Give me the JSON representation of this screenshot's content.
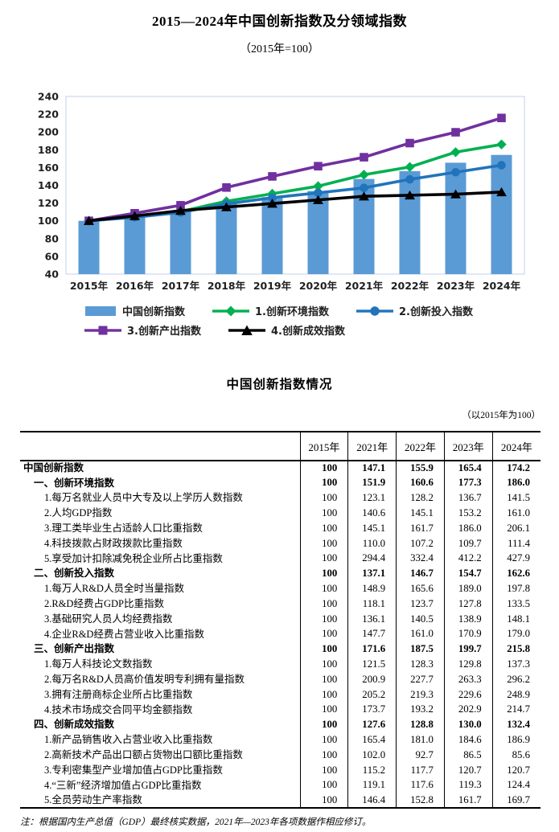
{
  "page": {
    "title": "2015—2024年中国创新指数及分领域指数",
    "subtitle": "（2015年=100）",
    "footer_note": "注：根据国内生产总值（GDP）最终核实数据，2021年—2023年各项数据作相应修订。"
  },
  "chart_data": {
    "type": "combo-bar-line",
    "title": "2015—2024年中国创新指数及分领域指数",
    "subtitle": "（2015年=100）",
    "categories": [
      "2015年",
      "2016年",
      "2017年",
      "2018年",
      "2019年",
      "2020年",
      "2021年",
      "2022年",
      "2023年",
      "2024年"
    ],
    "ylim": [
      40,
      240
    ],
    "ytick_step": 20,
    "grid": false,
    "legend_position": "bottom",
    "series": [
      {
        "name": "中国创新指数",
        "type": "bar",
        "marker": "bar-swatch",
        "color": "#5B9BD5",
        "values": [
          100,
          105.7,
          110.8,
          119.6,
          126.6,
          133.6,
          147.1,
          155.9,
          165.4,
          174.2
        ]
      },
      {
        "name": "1.创新环境指数",
        "type": "line",
        "marker": "diamond",
        "color": "#00B050",
        "values": [
          100,
          105.0,
          110.5,
          122.0,
          130.5,
          139.0,
          151.9,
          160.6,
          177.3,
          186.0
        ]
      },
      {
        "name": "2.创新投入指数",
        "type": "line",
        "marker": "circle",
        "color": "#2074BC",
        "values": [
          100,
          104.0,
          109.5,
          119.0,
          126.0,
          131.5,
          137.1,
          146.7,
          154.7,
          162.6
        ]
      },
      {
        "name": "3.创新产出指数",
        "type": "line",
        "marker": "square",
        "color": "#7030A0",
        "values": [
          100,
          108.5,
          117.5,
          137.5,
          150.0,
          161.5,
          171.6,
          187.5,
          199.7,
          215.8
        ]
      },
      {
        "name": "4.创新成效指数",
        "type": "line",
        "marker": "triangle",
        "color": "#000000",
        "values": [
          100,
          105.5,
          111.5,
          115.5,
          119.5,
          123.5,
          127.6,
          128.8,
          130.0,
          132.4
        ]
      }
    ],
    "plot_border_color": "#CBD7EF"
  },
  "table": {
    "title": "中国创新指数情况",
    "note": "（以2015年为100）",
    "columns": [
      "2015年",
      "2021年",
      "2022年",
      "2023年",
      "2024年"
    ],
    "rows": [
      {
        "label": "中国创新指数",
        "level": 0,
        "values": [
          "100",
          "147.1",
          "155.9",
          "165.4",
          "174.2"
        ]
      },
      {
        "label": "一、创新环境指数",
        "level": 1,
        "values": [
          "100",
          "151.9",
          "160.6",
          "177.3",
          "186.0"
        ]
      },
      {
        "label": "1.每万名就业人员中大专及以上学历人数指数",
        "level": 2,
        "values": [
          "100",
          "123.1",
          "128.2",
          "136.7",
          "141.5"
        ]
      },
      {
        "label": "2.人均GDP指数",
        "level": 2,
        "values": [
          "100",
          "140.6",
          "145.1",
          "153.2",
          "161.0"
        ]
      },
      {
        "label": "3.理工类毕业生占适龄人口比重指数",
        "level": 2,
        "values": [
          "100",
          "145.1",
          "161.7",
          "186.0",
          "206.1"
        ]
      },
      {
        "label": "4.科技拨款占财政拨款比重指数",
        "level": 2,
        "values": [
          "100",
          "110.0",
          "107.2",
          "109.7",
          "111.4"
        ]
      },
      {
        "label": "5.享受加计扣除减免税企业所占比重指数",
        "level": 2,
        "values": [
          "100",
          "294.4",
          "332.4",
          "412.2",
          "427.9"
        ]
      },
      {
        "label": "二、创新投入指数",
        "level": 1,
        "values": [
          "100",
          "137.1",
          "146.7",
          "154.7",
          "162.6"
        ]
      },
      {
        "label": "1.每万人R&D人员全时当量指数",
        "level": 2,
        "values": [
          "100",
          "148.9",
          "165.6",
          "189.0",
          "197.8"
        ]
      },
      {
        "label": "2.R&D经费占GDP比重指数",
        "level": 2,
        "values": [
          "100",
          "118.1",
          "123.7",
          "127.8",
          "133.5"
        ]
      },
      {
        "label": "3.基础研究人员人均经费指数",
        "level": 2,
        "values": [
          "100",
          "136.1",
          "140.5",
          "138.9",
          "148.1"
        ]
      },
      {
        "label": "4.企业R&D经费占营业收入比重指数",
        "level": 2,
        "values": [
          "100",
          "147.7",
          "161.0",
          "170.9",
          "179.0"
        ]
      },
      {
        "label": "三、创新产出指数",
        "level": 1,
        "values": [
          "100",
          "171.6",
          "187.5",
          "199.7",
          "215.8"
        ]
      },
      {
        "label": "1.每万人科技论文数指数",
        "level": 2,
        "values": [
          "100",
          "121.5",
          "128.3",
          "129.8",
          "137.3"
        ]
      },
      {
        "label": "2.每万名R&D人员高价值发明专利拥有量指数",
        "level": 2,
        "values": [
          "100",
          "200.9",
          "227.7",
          "263.3",
          "296.2"
        ]
      },
      {
        "label": "3.拥有注册商标企业所占比重指数",
        "level": 2,
        "values": [
          "100",
          "205.2",
          "219.3",
          "229.6",
          "248.9"
        ]
      },
      {
        "label": "4.技术市场成交合同平均金额指数",
        "level": 2,
        "values": [
          "100",
          "173.7",
          "193.2",
          "202.9",
          "214.7"
        ]
      },
      {
        "label": "四、创新成效指数",
        "level": 1,
        "values": [
          "100",
          "127.6",
          "128.8",
          "130.0",
          "132.4"
        ]
      },
      {
        "label": "1.新产品销售收入占营业收入比重指数",
        "level": 2,
        "values": [
          "100",
          "165.4",
          "181.0",
          "184.6",
          "186.9"
        ]
      },
      {
        "label": "2.高新技术产品出口额占货物出口额比重指数",
        "level": 2,
        "values": [
          "100",
          "102.0",
          "92.7",
          "86.5",
          "85.6"
        ]
      },
      {
        "label": "3.专利密集型产业增加值占GDP比重指数",
        "level": 2,
        "values": [
          "100",
          "115.2",
          "117.7",
          "120.7",
          "120.7"
        ]
      },
      {
        "label": "4.“三新”经济增加值占GDP比重指数",
        "level": 2,
        "values": [
          "100",
          "119.1",
          "117.6",
          "119.3",
          "124.4"
        ]
      },
      {
        "label": "5.全员劳动生产率指数",
        "level": 2,
        "values": [
          "100",
          "146.4",
          "152.8",
          "161.7",
          "169.7"
        ]
      }
    ]
  }
}
